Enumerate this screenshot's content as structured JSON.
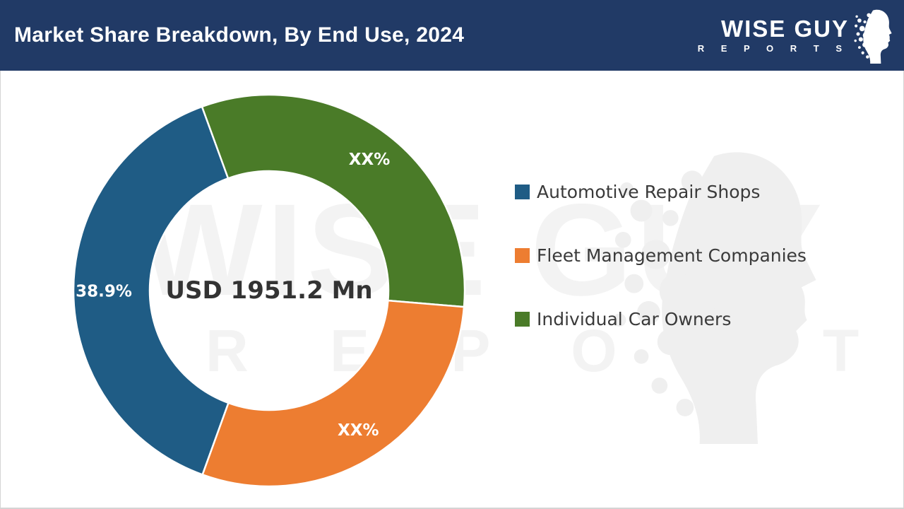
{
  "header": {
    "title": "Market Share Breakdown, By End Use, 2024",
    "logo": {
      "name_line": "WISE GUY",
      "reports_line": "R E P O R T S"
    }
  },
  "watermark": {
    "name_line": "WISE GUY",
    "reports_line": "R E P O R T S"
  },
  "chart_data": {
    "type": "pie",
    "subtype": "donut",
    "title": "Market Share Breakdown, By End Use, 2024",
    "center_label": "USD 1951.2 Mn",
    "legend_position": "right",
    "clockwise": true,
    "start_angle_deg": 199.9,
    "draw_order": [
      0,
      2,
      1
    ],
    "inner_radius_ratio": 0.61,
    "series": [
      {
        "name": "Automotive Repair Shops",
        "value": 38.9,
        "label": "38.9%",
        "color": "#1f5c85"
      },
      {
        "name": "Fleet Management Companies",
        "value": 29.2,
        "label": "XX%",
        "color": "#ed7d31"
      },
      {
        "name": "Individual Car Owners",
        "value": 31.9,
        "label": "XX%",
        "color": "#4a7b28"
      }
    ]
  },
  "colors": {
    "header_bg": "#213a66",
    "content_bg": "#ffffff",
    "border": "#d4d4d4",
    "center_text": "#333333",
    "legend_text": "#3a3a3a",
    "watermark": "#f3f3f3",
    "slice_label": "#ffffff"
  }
}
